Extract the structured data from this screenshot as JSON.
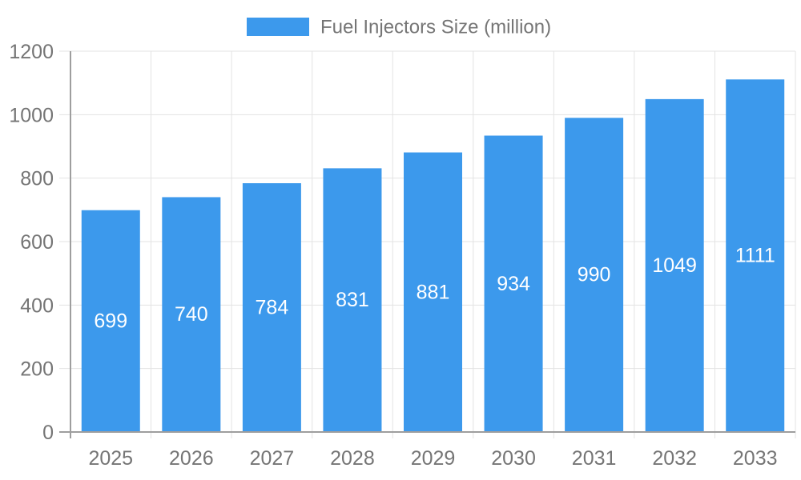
{
  "chart_data": {
    "type": "bar",
    "title": "",
    "legend": "Fuel Injectors Size (million)",
    "categories": [
      "2025",
      "2026",
      "2027",
      "2028",
      "2029",
      "2030",
      "2031",
      "2032",
      "2033"
    ],
    "series": [
      {
        "name": "Fuel Injectors Size (million)",
        "values": [
          699,
          740,
          784,
          831,
          881,
          934,
          990,
          1049,
          1111
        ]
      }
    ],
    "bar_value_labels": [
      699,
      740,
      784,
      831,
      881,
      934,
      990,
      1049,
      1111
    ],
    "xlabel": "",
    "ylabel": "",
    "ylim": [
      0,
      1200
    ],
    "ytick_interval": 200,
    "ytick_labels": [
      "0",
      "200",
      "400",
      "600",
      "800",
      "1000",
      "1200"
    ],
    "grid": true,
    "legend_position": "top-center",
    "colors": {
      "bar": "#3C99EC",
      "bar_label_text": "#FFFFFF",
      "axis_text": "#757575",
      "axis_line": "#9E9E9E",
      "gridline": "#E3E3E3",
      "background": "#FFFFFF"
    }
  }
}
